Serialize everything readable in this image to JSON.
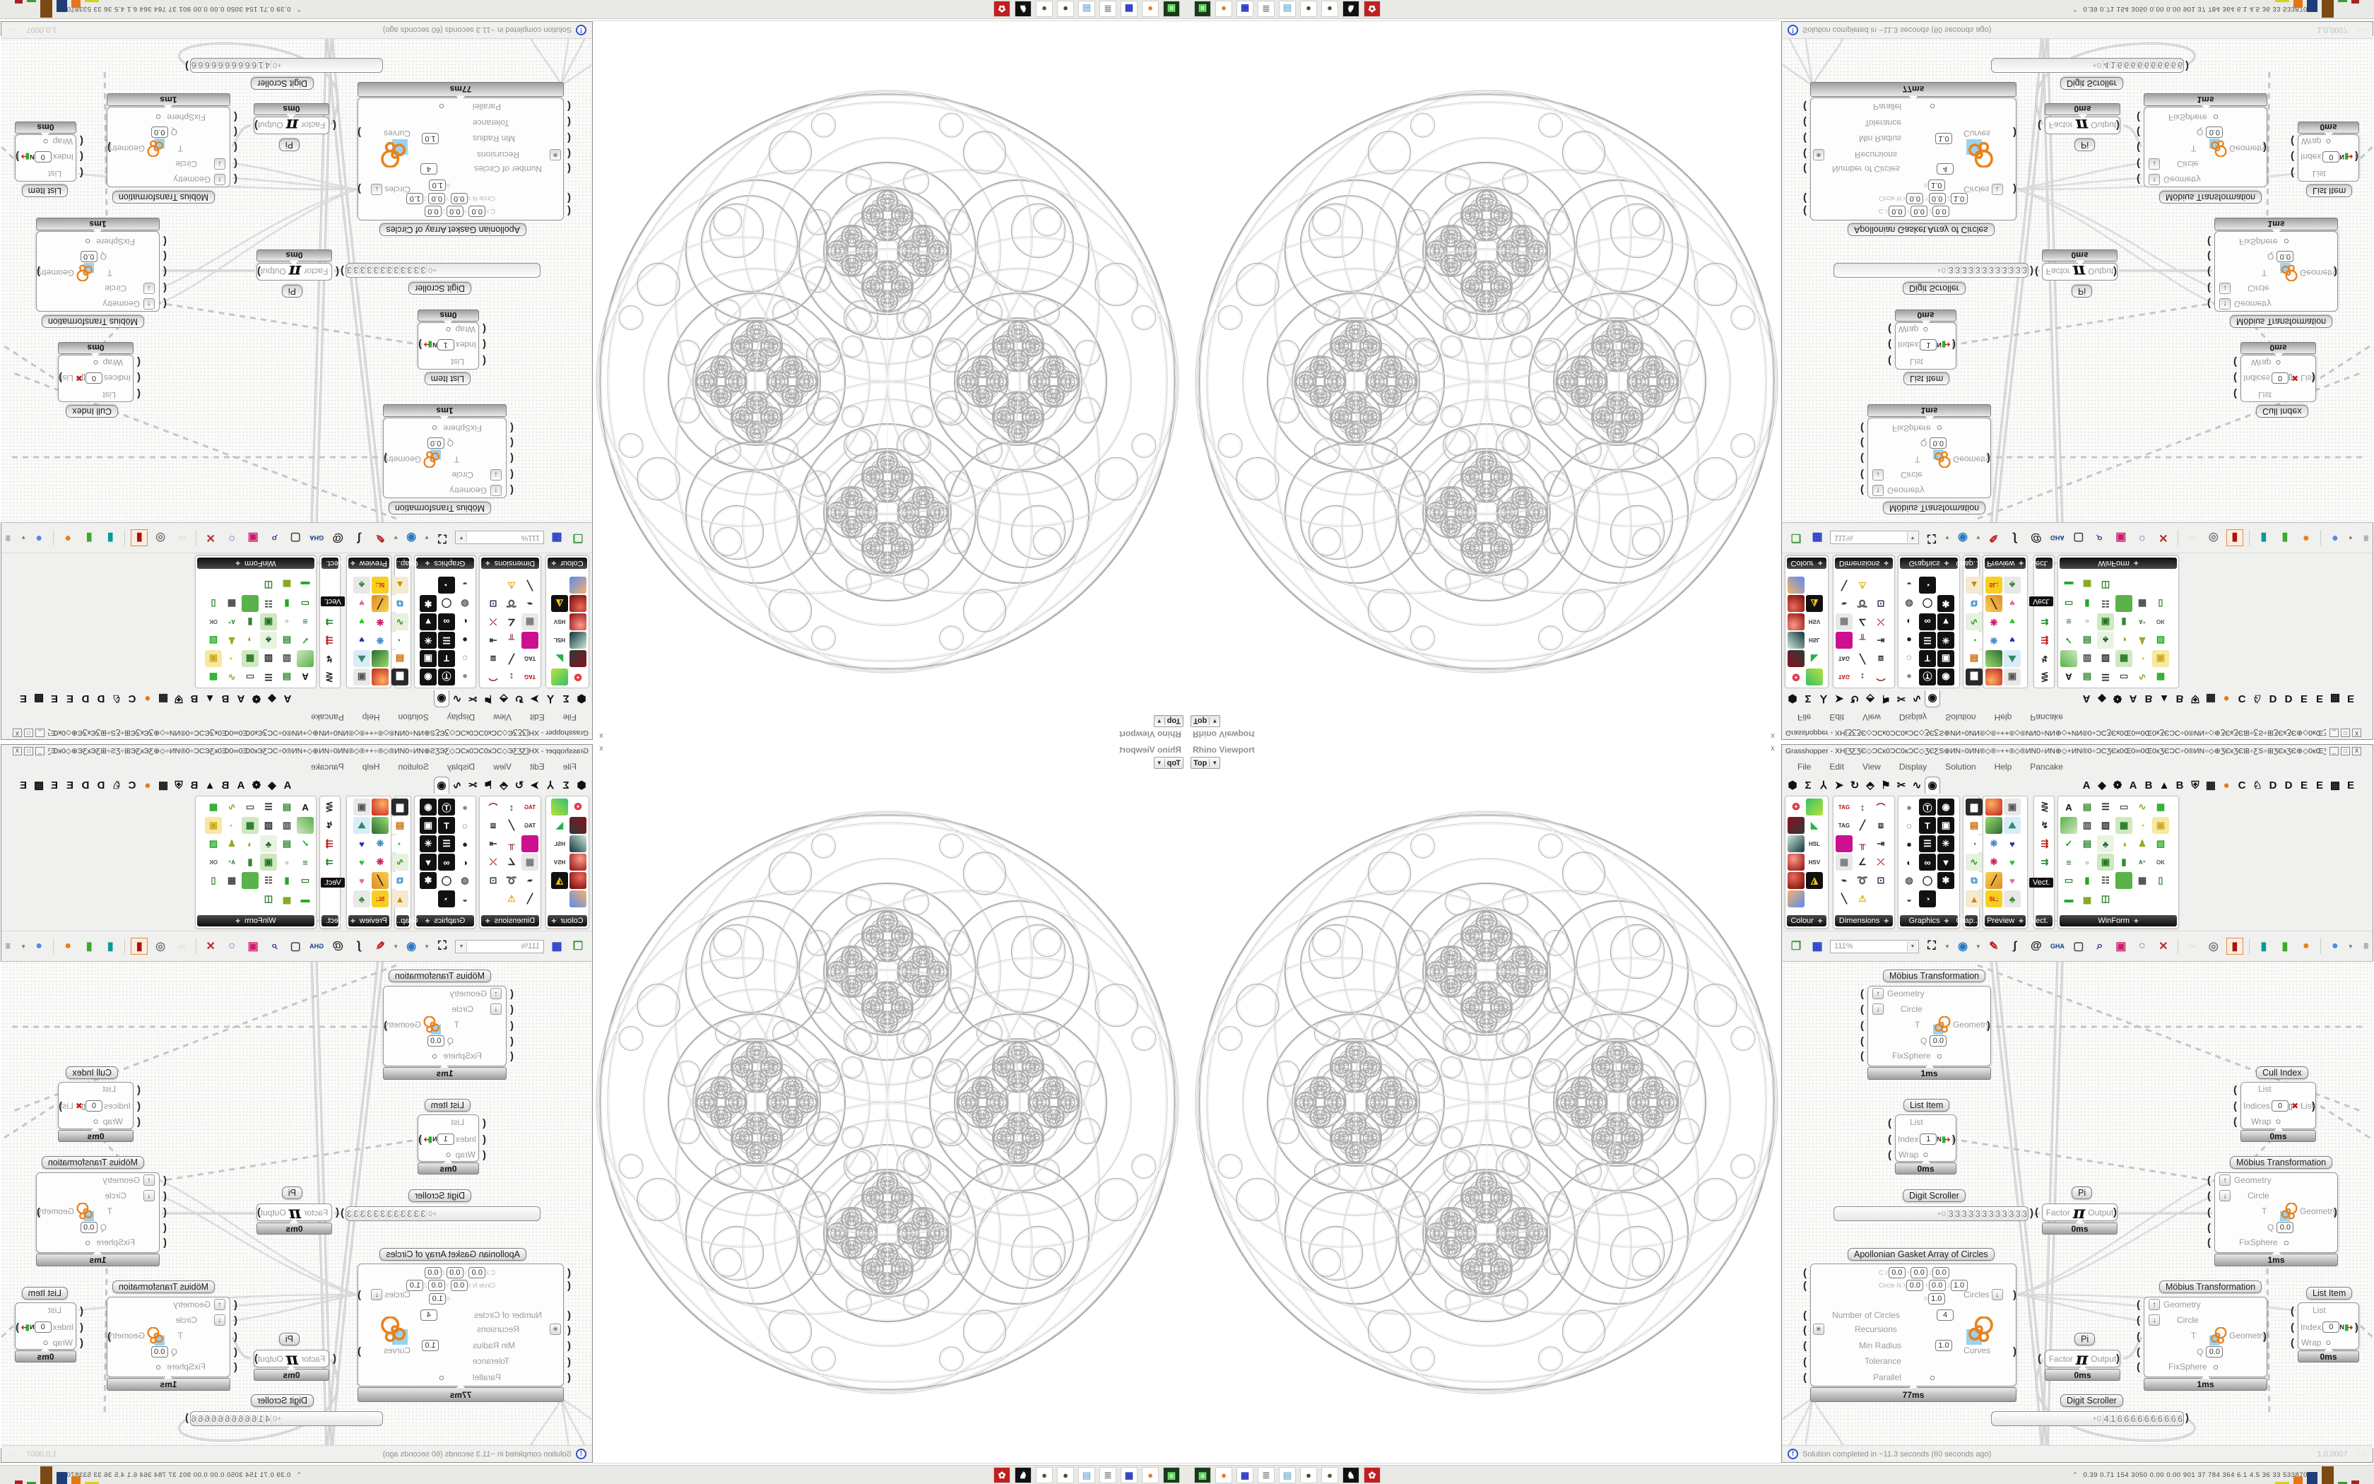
{
  "viewport": {
    "title": "Rhino Viewport",
    "view_button": "Top",
    "close_glyph": "x"
  },
  "gh_window": {
    "title": "Grasshopper - XH[ƷƸƷЄ◇ƆСк0ƆС0кƆС◇ƷЄƸS⊕ИN÷0ИN®◇®÷++®◇®ИN0÷ИN⊕◇+ИN®0÷ƆСƷЄк0Œ0∞0Œ0кƷЄƆС÷0®ИN÷◇⊕ƷЄкƷЄ⊞÷ƸS÷⊞ƷЄкƷЄ⊕◇0кŒƷЄ⊞÷ƆС...",
    "window_buttons": [
      "_",
      "□",
      "X"
    ],
    "menu": [
      "File",
      "Edit",
      "View",
      "Display",
      "Solution",
      "Help",
      "Pancake"
    ],
    "tabs_left": [
      "⬢",
      "Σ",
      "⅄",
      "➤",
      "↻",
      "⬘",
      "⚑",
      "✂",
      "∿",
      "◉"
    ],
    "tabs_right": [
      "A",
      "◆",
      "❁",
      "A",
      "B",
      "▲",
      "B",
      "⛨",
      "▦",
      "●",
      "C",
      "♘",
      "D",
      "D",
      "E",
      "E",
      "▩",
      "E"
    ],
    "selected_tab_index": 9,
    "palette": {
      "groups": [
        {
          "label": "Colour",
          "cols": 2,
          "icons": [
            [
              "#fff",
              "❂",
              "#d23"
            ],
            [
              "linear-gradient(135deg,#35c06a,#b8e23c)",
              "",
              ""
            ],
            [
              "linear-gradient(135deg,#8a1020,#2c3c34)",
              "",
              ""
            ],
            [
              "#fff",
              "◣",
              "#27b34a"
            ],
            [
              "linear-gradient(135deg,#cfe8d8,#10343c)",
              "",
              ""
            ],
            [
              "#fff",
              "HSL",
              "#333"
            ],
            [
              "radial-gradient(circle at 35% 30%,#ff9a8a,#8a0a0a)",
              "",
              ""
            ],
            [
              "#fff",
              "HSV",
              "#333"
            ],
            [
              "radial-gradient(circle at 35% 30%,#f06a5a,#6a0505)",
              "",
              ""
            ],
            [
              "#101010",
              "◮",
              "#f5c518"
            ],
            [
              "linear-gradient(135deg,#f8b26a,#5a8af0)",
              "",
              ""
            ]
          ]
        },
        {
          "label": "Dimensions",
          "cols": 3,
          "icons": [
            [
              "#fff",
              "TAG",
              "#b11"
            ],
            [
              "#fff",
              "↕",
              "#222"
            ],
            [
              "#fff",
              "⌒",
              "#922"
            ],
            [
              "#fff",
              "TAG",
              "#333"
            ],
            [
              "#fff",
              "╱",
              "#222"
            ],
            [
              "#fff",
              "⧈",
              "#444"
            ],
            [
              "#cc1090",
              "",
              "#fff"
            ],
            [
              "#fff",
              "╥",
              "#600"
            ],
            [
              "#fff",
              "⇥",
              "#333"
            ],
            [
              "#e8e8e8",
              "▦",
              "#777"
            ],
            [
              "#fff",
              "∠",
              "#222"
            ],
            [
              "#fff",
              "⤫",
              "#a22"
            ],
            [
              "#fff",
              "⌁",
              "#222"
            ],
            [
              "#fff",
              "➰",
              "#a33"
            ],
            [
              "#fff",
              "⊡",
              "#335"
            ],
            [
              "#fff",
              "╲",
              "#222"
            ],
            [
              "#fff",
              "⚠",
              "#e0b010"
            ]
          ]
        },
        {
          "label": "Graphics",
          "cols": 3,
          "icons": [
            [
              "#fff",
              "●",
              "#8a8a8a"
            ],
            [
              "#111",
              "Ⓣ",
              "#fff"
            ],
            [
              "#111",
              "◉",
              "#fff"
            ],
            [
              "#fff",
              "◌",
              "#222"
            ],
            [
              "#111",
              "T",
              "#fff"
            ],
            [
              "#111",
              "▣",
              "#fff"
            ],
            [
              "#fff",
              "●",
              "#222"
            ],
            [
              "#111",
              "☰",
              "#fff"
            ],
            [
              "#111",
              "✳",
              "#fff"
            ],
            [
              "#fff",
              "◐",
              "#222"
            ],
            [
              "#111",
              "∞",
              "#fff"
            ],
            [
              "#111",
              "▼",
              "#fff"
            ],
            [
              "#fff",
              "◍",
              "#555"
            ],
            [
              "#fff",
              "◯",
              "#222"
            ],
            [
              "#111",
              "✱",
              "#fff"
            ],
            [
              "#fff",
              "◒",
              "#444"
            ],
            [
              "#111",
              "◔",
              "#fff"
            ]
          ]
        },
        {
          "label": "Grap..",
          "cols": 1,
          "icons": [
            [
              "#2a2a2a",
              "▆",
              "#fff"
            ],
            [
              "#fff",
              "▤",
              "#c60"
            ],
            [
              "#fff",
              "◔",
              "#2a2"
            ],
            [
              "#e8f0e0",
              "∿",
              "#392"
            ],
            [
              "#fff",
              "⧉",
              "#38c"
            ],
            [
              "#f4ead0",
              "▲",
              "#c80"
            ]
          ]
        },
        {
          "label": "Preview",
          "cols": 2,
          "icons": [
            [
              "radial-gradient(circle at 35% 30%,#ffb060,#c02020)",
              "",
              ""
            ],
            [
              "#e8e8e8",
              "▣",
              "#555"
            ],
            [
              "linear-gradient(135deg,#9adf70,#2a6a30)",
              "",
              ""
            ],
            [
              "#d8ecf8",
              "⛰",
              "#386"
            ],
            [
              "#fff",
              "❋",
              "#48c"
            ],
            [
              "#fff",
              "♥",
              "#23a"
            ],
            [
              "#fff",
              "❋",
              "#d2186a"
            ],
            [
              "#fff",
              "♥",
              "#2c2"
            ],
            [
              "linear-gradient(135deg,#f8d24a,#e08a2a)",
              "╱",
              "#222"
            ],
            [
              "#fff",
              "♥",
              "#e06a9a"
            ],
            [
              "#f5d020",
              "SL;",
              "#c11"
            ],
            [
              "#e8e8e8",
              "♣",
              "#383"
            ]
          ]
        },
        {
          "label": "Vect.",
          "cols": 1,
          "tooltip": "Vect.",
          "icons": [
            [
              "#fff",
              "⋛",
              "#222"
            ],
            [
              "#fff",
              "↯",
              "#222"
            ],
            [
              "#fff",
              "⇶",
              "#b22"
            ],
            [
              "#fff",
              "⇉",
              "#283"
            ]
          ]
        },
        {
          "label": "WinForm",
          "cols": 6,
          "icons": [
            [
              "#fff",
              "A",
              "#111"
            ],
            [
              "#fff",
              "▤",
              "#383"
            ],
            [
              "#fff",
              "☰",
              "#222"
            ],
            [
              "#fff",
              "▭",
              "#555"
            ],
            [
              "#fff",
              "∿",
              "#8a2"
            ],
            [
              "#fff",
              "▦",
              "#2a2"
            ],
            [
              "linear-gradient(135deg,#5ab24a,#cfe8c0)",
              "",
              ""
            ],
            [
              "#fff",
              "▥",
              "#444"
            ],
            [
              "#fff",
              "▥",
              "#222"
            ],
            [
              "#cfe8c0",
              "▦",
              "#272"
            ],
            [
              "#fff",
              "◔",
              "#cb2"
            ],
            [
              "#f8e8a0",
              "▣",
              "#ca2"
            ],
            [
              "#fff",
              "✓",
              "#2a2"
            ],
            [
              "#fff",
              "▤",
              "#383"
            ],
            [
              "#e8f4e0",
              "♣",
              "#264"
            ],
            [
              "#fff",
              "◑",
              "#9a2"
            ],
            [
              "#fff",
              "♟",
              "#9a2"
            ],
            [
              "#fff",
              "▧",
              "#2a2"
            ],
            [
              "#fff",
              "≡",
              "#272"
            ],
            [
              "#fff",
              "▫",
              "#555"
            ],
            [
              "#cfe8c0",
              "▣",
              "#272"
            ],
            [
              "#fff",
              "▮",
              "#383"
            ],
            [
              "#fff",
              "A⁺",
              "#272"
            ],
            [
              "#fff",
              "OK",
              "#555"
            ],
            [
              "#fff",
              "▭",
              "#383"
            ],
            [
              "#fff",
              "▮",
              "#2a2"
            ],
            [
              "#fff",
              "☷",
              "#333"
            ],
            [
              "#5ab24a",
              "",
              "#fff"
            ],
            [
              "#fff",
              "▦",
              "#444"
            ],
            [
              "#fff",
              "▯",
              "#383"
            ],
            [
              "#fff",
              "▬",
              "#2a2"
            ],
            [
              "#fff",
              "▅",
              "#8a2"
            ],
            [
              "#fff",
              "◫",
              "#272"
            ]
          ]
        }
      ]
    },
    "toolbar": {
      "zoom_value": "111%",
      "icons": [
        {
          "name": "open-file-icon",
          "g": "❐",
          "c": "#3a9a3a"
        },
        {
          "name": "save-file-icon",
          "g": "▦",
          "c": "#2038c8"
        },
        {
          "name": "zoom-combo",
          "combo": true
        },
        {
          "name": "zoom-extents-icon",
          "g": "⛶",
          "c": "#111"
        },
        {
          "name": "dropdown-caret-icon",
          "dd": true
        },
        {
          "name": "preview-eye-icon",
          "g": "◉",
          "c": "#2878c0"
        },
        {
          "name": "dropdown-caret-icon",
          "dd": true
        },
        {
          "name": "sketch-pen-icon",
          "g": "✎",
          "c": "#c02020"
        },
        {
          "name": "exoskeleton-icon",
          "g": "∫",
          "c": "#222"
        },
        {
          "name": "remote-at-icon",
          "g": "@",
          "c": "#111"
        },
        {
          "name": "gha-icon",
          "g": "GHA",
          "c": "#123a8a",
          "small": true
        },
        {
          "name": "window-icon",
          "g": "▢",
          "c": "#444"
        },
        {
          "name": "finder-loupe-icon",
          "g": "⌕",
          "c": "#203a8a"
        },
        {
          "name": "package-pink-icon",
          "g": "▣",
          "c": "#d01870"
        },
        {
          "name": "balloon-icon",
          "g": "○",
          "c": "#8a5ac8"
        },
        {
          "name": "galapagos-icon",
          "g": "✕",
          "c": "#b03030"
        },
        {
          "name": "sep"
        },
        {
          "name": "balloons-gray-icon",
          "g": "◌◌",
          "c": "#8a8a8a",
          "small": true
        },
        {
          "name": "rings-icon",
          "g": "◎",
          "c": "#777"
        },
        {
          "name": "red-cylinder-icon",
          "g": "▮",
          "c": "#b01010",
          "box": true
        },
        {
          "name": "sep"
        },
        {
          "name": "teal-pin-icon",
          "g": "▮",
          "c": "#0a9a9a"
        },
        {
          "name": "green-pin-icon",
          "g": "▮",
          "c": "#3aaa2a"
        },
        {
          "name": "orange-sphere-icon",
          "g": "●",
          "c": "#e88010"
        },
        {
          "name": "sep"
        },
        {
          "name": "blue-sphere-icon",
          "g": "●",
          "c": "#5088e8"
        },
        {
          "name": "dropdown-caret-icon",
          "dd": true
        },
        {
          "name": "overflow-icon",
          "g": "≣",
          "c": "#999",
          "small": true
        }
      ]
    },
    "status": {
      "text": "Solution completed in ~11.3 seconds (60 seconds ago)",
      "icon_glyph": "!",
      "right_text": "1,0,0007",
      "grip": "∴∴"
    },
    "node_labels": {
      "mobius": "Möbius Transformation",
      "list_item": "List Item",
      "digit_scroller": "Digit Scroller",
      "pi": "Pi",
      "cull_index": "Cull Index",
      "apollonian": "Apollonian Gasket Array of Circles"
    },
    "mobius": {
      "inputs": [
        "Geometry",
        "Circle",
        "T",
        "Q",
        "FixSphere"
      ],
      "q_value": "0.0",
      "output": "Geometry",
      "time": "1ms"
    },
    "list_item": {
      "inputs": [
        "List",
        "Index",
        "Wrap"
      ],
      "output": "i",
      "time": "0ms",
      "index_values": [
        "1",
        "0"
      ]
    },
    "cull_index": {
      "inputs": [
        "List",
        "Indices",
        "Wrap"
      ],
      "indices_value": "0",
      "output": "List",
      "time": "0ms"
    },
    "pi": {
      "input": "Factor",
      "glyph": "π",
      "output": "Output",
      "time": "0ms"
    },
    "digit_scroller": {
      "prefix": "+0",
      "digits_1": [
        "3",
        "3",
        "3",
        "3",
        "3",
        "3",
        "3",
        "3",
        "3",
        "3",
        "3",
        "3"
      ],
      "digits_2": [
        "4",
        "1",
        "6",
        "6",
        "6",
        "6",
        "6",
        "6",
        "6",
        "6",
        "6",
        "6"
      ]
    },
    "apollonian": {
      "labels": {
        "c": "C",
        "n": "Circle N",
        "x": "X",
        "y": "Y",
        "z": "Z",
        "r": "R"
      },
      "c_values": [
        "0.0",
        "0.0",
        "0.0"
      ],
      "n_values": [
        "0.0",
        "0.0",
        "1.0"
      ],
      "r_value": "1.0",
      "rows": [
        "Number of Circles",
        "Recursions",
        "Min Radius",
        "Tolerance",
        "Parallel"
      ],
      "number_value": "4",
      "min_radius_value": "1.0",
      "outputs": [
        "Circles",
        "Curves"
      ],
      "time": "77ms"
    }
  },
  "taskbar": {
    "icons": [
      {
        "name": "app-console-icon",
        "g": "▣",
        "c": "#1a6a1a",
        "bg": "#1a3a1a",
        "fg": "#8f8"
      },
      {
        "name": "app-browser-icon",
        "g": "●",
        "c": "#e87820",
        "bg": "#fff",
        "fg": "#e87820"
      },
      {
        "name": "app-floppy64-icon",
        "g": "▦",
        "c": "#2030c0",
        "bg": "#fff",
        "fg": "#2030c0"
      },
      {
        "name": "app-document-icon",
        "g": "≣",
        "c": "#888",
        "bg": "#fff",
        "fg": "#888"
      },
      {
        "name": "app-notepad-icon",
        "g": "▤",
        "c": "#88b8d8",
        "bg": "#fff",
        "fg": "#88b8d8"
      },
      {
        "name": "app-grenade1-icon",
        "g": "●",
        "c": "#4a4a28",
        "bg": "#fff",
        "fg": "#4a4a28"
      },
      {
        "name": "app-grenade2-icon",
        "g": "●",
        "c": "#55552f",
        "bg": "#fff",
        "fg": "#55552f"
      },
      {
        "name": "app-cat-icon",
        "g": "♞",
        "c": "#fff",
        "bg": "#111",
        "fg": "#fff"
      },
      {
        "name": "app-emblem-icon",
        "g": "✿",
        "c": "#fff",
        "bg": "#c02020",
        "fg": "#fff"
      }
    ],
    "caret": "⌃",
    "stats": "0.39  0.71  154  3050  0.00  0.00  901   37   784  364   6.1   4.5   36    33   53387083",
    "tray_bars": [
      {
        "c": "#d8d020",
        "w": 20,
        "h": 3
      },
      {
        "c": "#e07818",
        "w": 13,
        "h": 11
      },
      {
        "c": "#1f3d7a",
        "w": 15,
        "h": 17
      },
      {
        "c": "#7a4a12",
        "w": 17,
        "h": 25
      },
      {
        "c": "#3a9a3a",
        "w": 13,
        "h": 3
      },
      {
        "c": "#a82222",
        "w": 11,
        "h": 5
      }
    ]
  }
}
